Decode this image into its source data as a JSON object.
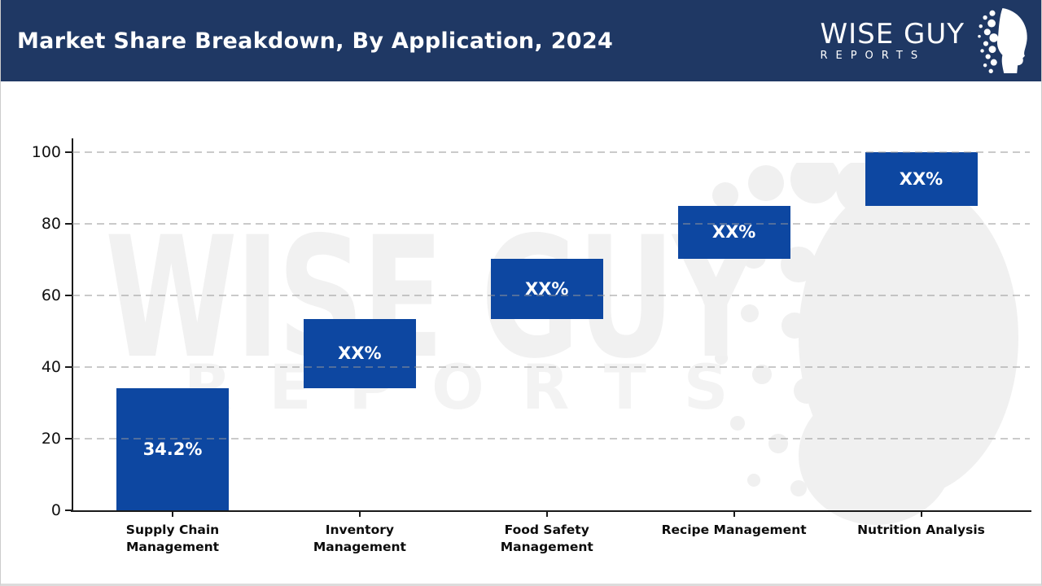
{
  "header": {
    "title": "Market Share Breakdown, By Application, 2024",
    "background_color": "#1f3864",
    "logo": {
      "line1": "WISE GUY",
      "line2": "REPORTS"
    }
  },
  "watermark": {
    "line1": "WISE GUY",
    "line2": "REPORTS"
  },
  "chart_data": {
    "type": "bar",
    "subtype": "waterfall",
    "title": "Market Share Breakdown, By Application, 2024",
    "xlabel": "",
    "ylabel": "",
    "ylim": [
      0,
      104
    ],
    "grid": true,
    "legend": false,
    "bar_color": "#0d47a1",
    "label_color": "#ffffff",
    "y_ticks": [
      0,
      20,
      40,
      60,
      80,
      100
    ],
    "categories": [
      "Supply Chain Management",
      "Inventory Management",
      "Food Safety Management",
      "Recipe Management",
      "Nutrition Analysis"
    ],
    "category_lines": [
      [
        "Supply Chain",
        "Management"
      ],
      [
        "Inventory",
        "Management"
      ],
      [
        "Food Safety",
        "Management"
      ],
      [
        "Recipe Management"
      ],
      [
        "Nutrition Analysis"
      ]
    ],
    "segments": [
      {
        "category": "Supply Chain Management",
        "start": 0,
        "end": 34.2,
        "label": "34.2%"
      },
      {
        "category": "Inventory Management",
        "start": 34.2,
        "end": 53.3,
        "label": "XX%"
      },
      {
        "category": "Food Safety Management",
        "start": 53.3,
        "end": 70.3,
        "label": "XX%"
      },
      {
        "category": "Recipe Management",
        "start": 70.3,
        "end": 85.0,
        "label": "XX%"
      },
      {
        "category": "Nutrition Analysis",
        "start": 85.0,
        "end": 100.0,
        "label": "XX%"
      }
    ]
  }
}
